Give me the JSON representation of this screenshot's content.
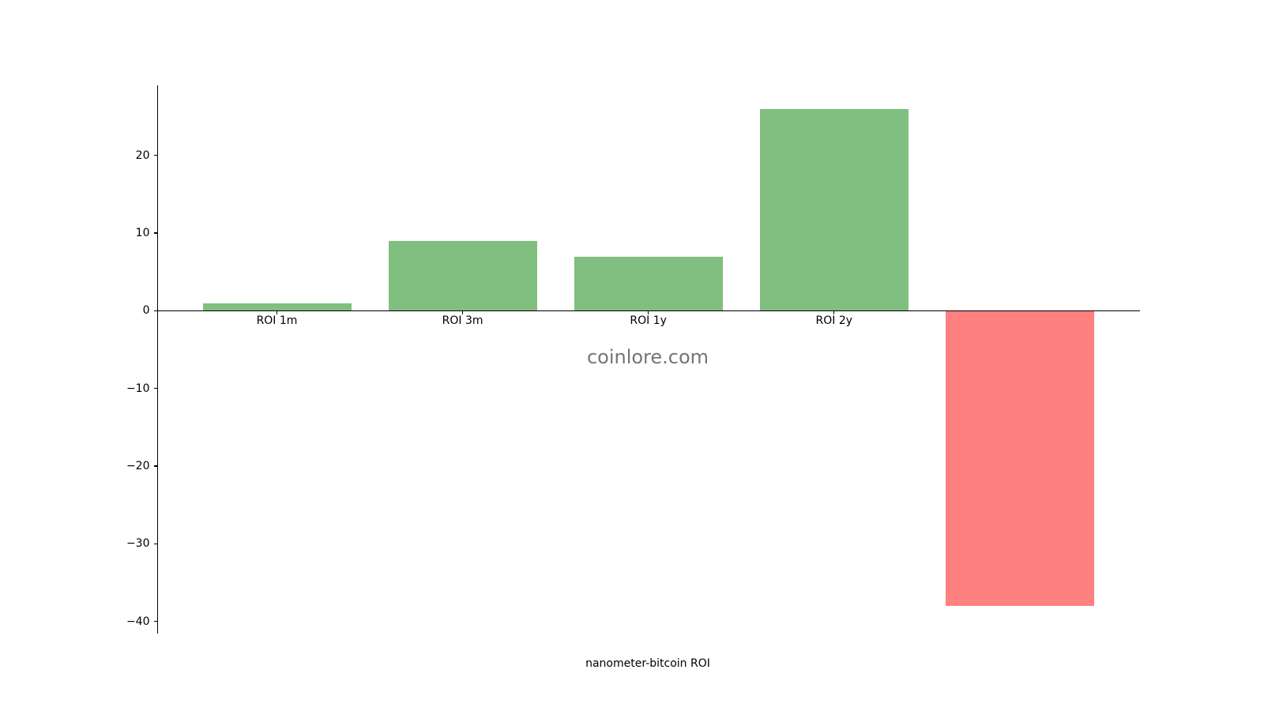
{
  "page": {
    "background": "#ffffff"
  },
  "chart_data": {
    "type": "bar",
    "title": "nanometer-bitcoin ROI",
    "watermark": "coinlore.com",
    "categories": [
      "ROI 1m",
      "ROI 3m",
      "ROI 1y",
      "ROI 2y",
      ""
    ],
    "values": [
      1,
      9,
      7,
      26,
      -38
    ],
    "bar_colors": [
      "#80bf80",
      "#80bf80",
      "#80bf80",
      "#80bf80",
      "#ff8080"
    ],
    "positive_color": "#80bf80",
    "negative_color": "#ff8080",
    "yticks": [
      20,
      10,
      0,
      -10,
      -20,
      -30,
      -40
    ],
    "ytick_labels": [
      "20",
      "10",
      "0",
      "−10",
      "−20",
      "−30",
      "−40"
    ],
    "ylim": [
      -41.5,
      29.2
    ],
    "xlabel": "",
    "ylabel": "",
    "grid": false,
    "legend": false,
    "axis_color": "#000000",
    "text_color": "#000000",
    "watermark_color": "#757575"
  }
}
